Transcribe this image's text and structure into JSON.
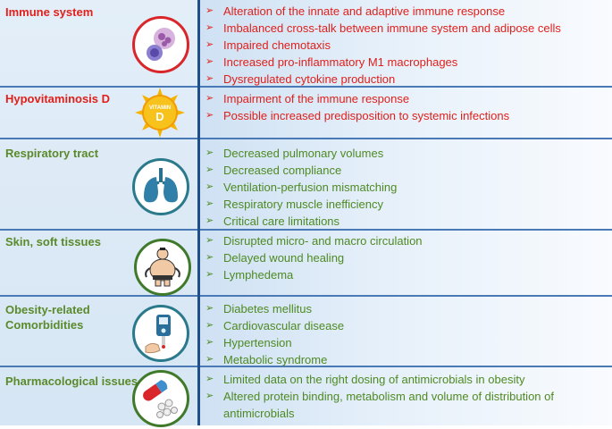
{
  "rows": [
    {
      "title": "Immune system",
      "icon": "immune-cells-icon",
      "bullets": [
        "Alteration of the innate and adaptive immune response",
        "Imbalanced cross-talk between immune system and adipose cells",
        "Impaired chemotaxis",
        "Increased pro-inflammatory M1 macrophages",
        "Dysregulated cytokine production"
      ]
    },
    {
      "title": "Hypovitaminosis D",
      "icon": "vitamin-d-sun-icon",
      "icon_text": [
        "VITAMIN",
        "D"
      ],
      "bullets": [
        "Impairment of the immune response",
        "Possible increased predisposition to systemic infections"
      ]
    },
    {
      "title": "Respiratory tract",
      "icon": "lungs-icon",
      "bullets": [
        "Decreased pulmonary volumes",
        "Decreased compliance",
        "Ventilation-perfusion mismatching",
        "Respiratory muscle inefficiency",
        "Critical care limitations"
      ]
    },
    {
      "title": "Skin, soft tissues",
      "icon": "obese-person-icon",
      "bullets": [
        "Disrupted micro- and macro circulation",
        "Delayed wound healing",
        "Lymphedema"
      ]
    },
    {
      "title_lines": [
        "Obesity-related",
        "Comorbidities"
      ],
      "icon": "glucose-meter-icon",
      "bullets": [
        "Diabetes mellitus",
        "Cardiovascular disease",
        "Hypertension",
        "Metabolic syndrome"
      ]
    },
    {
      "title": "Pharmacological issues",
      "icon": "pills-capsules-icon",
      "bullets": [
        "Limited data on the right dosing of antimicrobials in obesity",
        "Altered protein binding, metabolism and volume of distribution of antimicrobials"
      ]
    }
  ],
  "colors": {
    "red_text": "#e0201b",
    "green_text": "#4e8a22",
    "icon_ring_red": "#d9262b",
    "icon_ring_green": "#3f7a2a",
    "icon_ring_teal": "#2a7a8c",
    "divider_blue": "#1f4f8a"
  }
}
